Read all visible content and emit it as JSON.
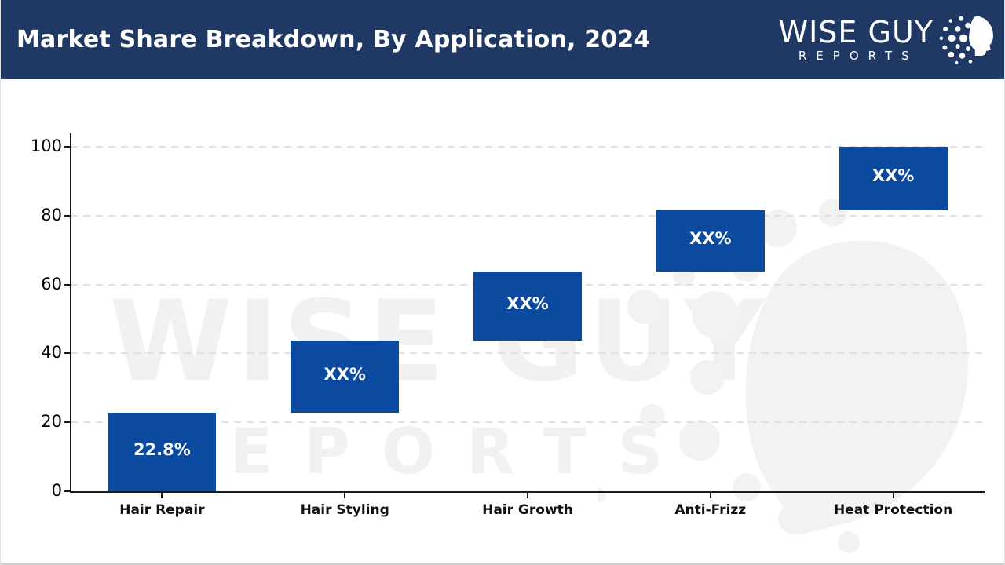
{
  "header": {
    "title": "Market Share Breakdown, By Application, 2024",
    "logo": {
      "line1": "WISE GUY",
      "line2": "REPORTS"
    }
  },
  "watermark": {
    "line1": "WISE GUY",
    "line2": "REPORTS"
  },
  "colors": {
    "header_bg": "#1f3864",
    "bar_blue": "#0b4a9f",
    "grid_gray": "#e1e1e1",
    "watermark_gray": "#f1f1f1",
    "axis_black": "#1a1a1a"
  },
  "chart_data": {
    "type": "bar",
    "subtype": "waterfall",
    "title": "Market Share Breakdown, By Application, 2024",
    "xlabel": "",
    "ylabel": "",
    "categories": [
      "Hair Repair",
      "Hair Styling",
      "Hair Growth",
      "Anti-Frizz",
      "Heat Protection"
    ],
    "segments": [
      {
        "category": "Hair Repair",
        "start": 0,
        "end": 22.8,
        "label": "22.8%"
      },
      {
        "category": "Hair Styling",
        "start": 22.8,
        "end": 43.8,
        "label": "XX%"
      },
      {
        "category": "Hair Growth",
        "start": 43.8,
        "end": 63.7,
        "label": "XX%"
      },
      {
        "category": "Anti-Frizz",
        "start": 63.7,
        "end": 81.6,
        "label": "XX%"
      },
      {
        "category": "Heat Protection",
        "start": 81.6,
        "end": 100,
        "label": "XX%"
      }
    ],
    "y_ticks": [
      0,
      20,
      40,
      60,
      80,
      100
    ],
    "ylim": [
      0,
      100
    ],
    "grid": "dashed-horizontal",
    "legend": "none",
    "bar_color": "#0b4a9f",
    "bar_label_color": "#ffffff"
  }
}
